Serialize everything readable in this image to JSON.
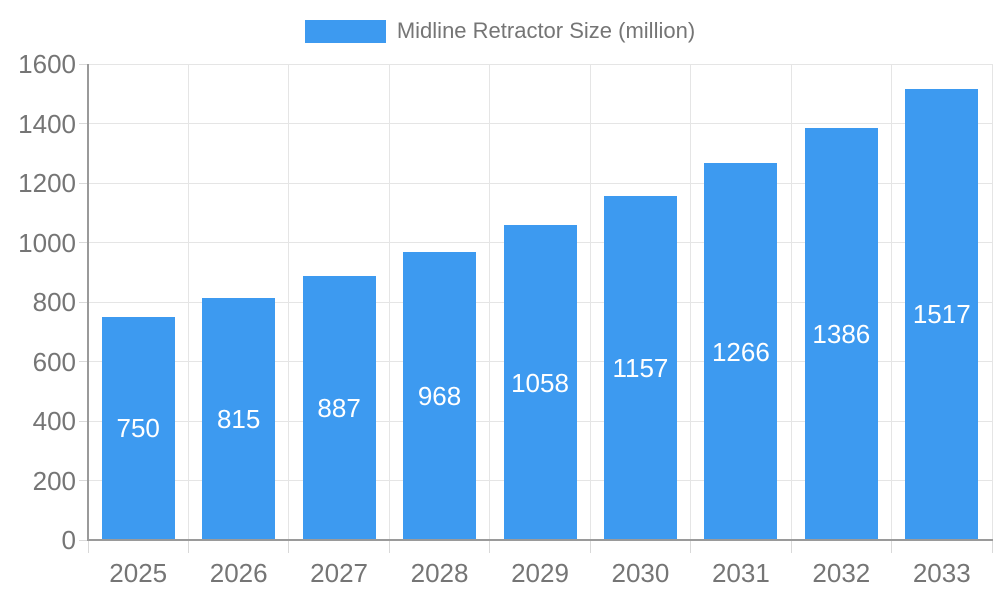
{
  "legend": {
    "label": "Midline Retractor Size (million)"
  },
  "chart_data": {
    "type": "bar",
    "title": "Midline Retractor Size (million)",
    "categories": [
      "2025",
      "2026",
      "2027",
      "2028",
      "2029",
      "2030",
      "2031",
      "2032",
      "2033"
    ],
    "values": [
      750,
      815,
      887,
      968,
      1058,
      1157,
      1266,
      1386,
      1517
    ],
    "series": [
      {
        "name": "Midline Retractor Size (million)",
        "values": [
          750,
          815,
          887,
          968,
          1058,
          1157,
          1266,
          1386,
          1517
        ]
      }
    ],
    "xlabel": "",
    "ylabel": "",
    "ylim": [
      0,
      1600
    ],
    "ytick_interval": 200,
    "yticks": [
      0,
      200,
      400,
      600,
      800,
      1000,
      1200,
      1400,
      1600
    ],
    "grid": true,
    "legend_position": "top",
    "bar_label_position": "inside-center",
    "colors": {
      "bar": "#3D9AF0",
      "bar_label": "#FFFFFF",
      "axis_text": "#757575",
      "legend_text": "#757575",
      "grid_line": "#E5E5E5",
      "tick_line": "#D9D9D9",
      "axis_line": "#9A9A9A",
      "background": "#FFFFFF"
    }
  }
}
